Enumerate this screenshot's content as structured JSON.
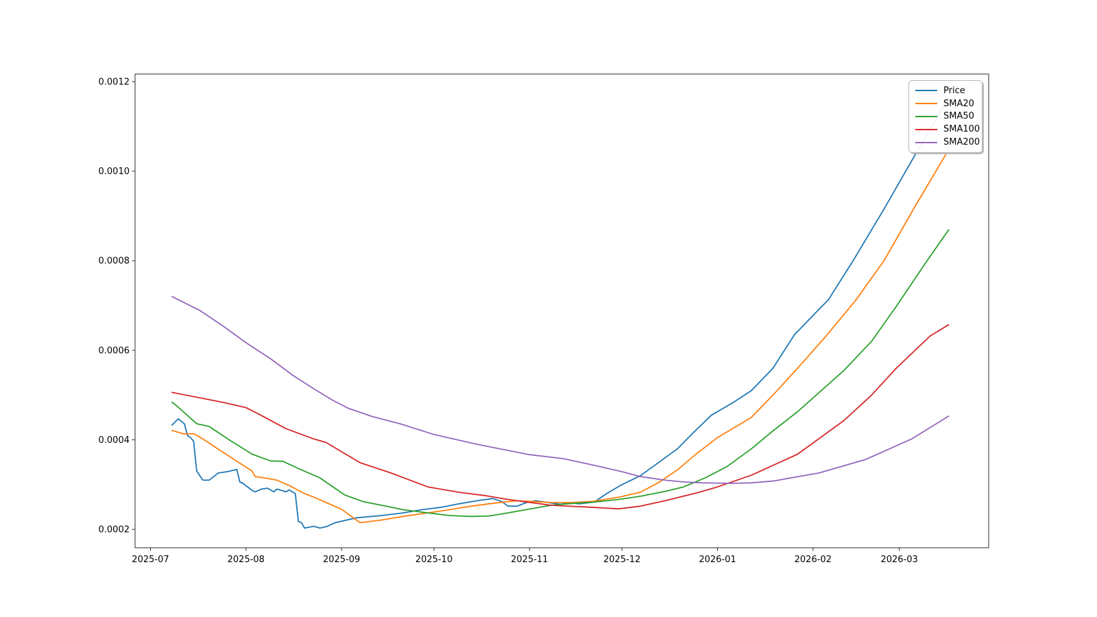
{
  "figure": {
    "background": "#ffffff",
    "plot_background": "#ffffff",
    "spine_color": "#2a2a2a"
  },
  "chart_data": {
    "type": "line",
    "title": "",
    "xlabel": "",
    "ylabel": "",
    "grid": false,
    "legend_position": "upper right",
    "x_axis": {
      "range": [
        "2025-06-26",
        "2026-03-30"
      ],
      "ticks": [
        {
          "label": "2025-07",
          "date": "2025-07-01"
        },
        {
          "label": "2025-08",
          "date": "2025-08-01"
        },
        {
          "label": "2025-09",
          "date": "2025-09-01"
        },
        {
          "label": "2025-10",
          "date": "2025-10-01"
        },
        {
          "label": "2025-11",
          "date": "2025-11-01"
        },
        {
          "label": "2025-12",
          "date": "2025-12-01"
        },
        {
          "label": "2026-01",
          "date": "2026-01-01"
        },
        {
          "label": "2026-02",
          "date": "2026-02-01"
        },
        {
          "label": "2026-03",
          "date": "2026-03-01"
        }
      ]
    },
    "y_axis": {
      "range": [
        0.000159,
        0.001217
      ],
      "ticks": [
        {
          "label": "0.0002",
          "value": 0.0002
        },
        {
          "label": "0.0004",
          "value": 0.0004
        },
        {
          "label": "0.0006",
          "value": 0.0006
        },
        {
          "label": "0.0008",
          "value": 0.0008
        },
        {
          "label": "0.0010",
          "value": 0.001
        },
        {
          "label": "0.0012",
          "value": 0.0012
        }
      ]
    },
    "series": [
      {
        "name": "Price",
        "color": "#1f77b4",
        "points": [
          [
            "2025-07-08",
            0.000433
          ],
          [
            "2025-07-10",
            0.000447
          ],
          [
            "2025-07-12",
            0.000436
          ],
          [
            "2025-07-13",
            0.00041
          ],
          [
            "2025-07-14",
            0.000405
          ],
          [
            "2025-07-15",
            0.000397
          ],
          [
            "2025-07-16",
            0.00033
          ],
          [
            "2025-07-18",
            0.00031
          ],
          [
            "2025-07-20",
            0.00031
          ],
          [
            "2025-07-23",
            0.000326
          ],
          [
            "2025-07-26",
            0.000329
          ],
          [
            "2025-07-29",
            0.000334
          ],
          [
            "2025-07-30",
            0.000306
          ],
          [
            "2025-07-31",
            0.000303
          ],
          [
            "2025-08-03",
            0.000287
          ],
          [
            "2025-08-04",
            0.000284
          ],
          [
            "2025-08-06",
            0.00029
          ],
          [
            "2025-08-08",
            0.000292
          ],
          [
            "2025-08-10",
            0.000284
          ],
          [
            "2025-08-11",
            0.00029
          ],
          [
            "2025-08-14",
            0.000284
          ],
          [
            "2025-08-15",
            0.000288
          ],
          [
            "2025-08-17",
            0.00028
          ],
          [
            "2025-08-18",
            0.000218
          ],
          [
            "2025-08-19",
            0.000215
          ],
          [
            "2025-08-20",
            0.000203
          ],
          [
            "2025-08-23",
            0.000207
          ],
          [
            "2025-08-25",
            0.000203
          ],
          [
            "2025-08-27",
            0.000206
          ],
          [
            "2025-08-30",
            0.000215
          ],
          [
            "2025-09-06",
            0.000226
          ],
          [
            "2025-09-14",
            0.000231
          ],
          [
            "2025-09-21",
            0.000237
          ],
          [
            "2025-09-27",
            0.000244
          ],
          [
            "2025-10-03",
            0.000249
          ],
          [
            "2025-10-09",
            0.000257
          ],
          [
            "2025-10-15",
            0.000264
          ],
          [
            "2025-10-20",
            0.000269
          ],
          [
            "2025-10-23",
            0.000262
          ],
          [
            "2025-10-25",
            0.000252
          ],
          [
            "2025-10-28",
            0.000252
          ],
          [
            "2025-10-31",
            0.00026
          ],
          [
            "2025-11-03",
            0.000264
          ],
          [
            "2025-11-06",
            0.000261
          ],
          [
            "2025-11-08",
            0.000259
          ],
          [
            "2025-11-11",
            0.000256
          ],
          [
            "2025-11-14",
            0.00026
          ],
          [
            "2025-11-17",
            0.000257
          ],
          [
            "2025-11-22",
            0.000261
          ],
          [
            "2025-11-26",
            0.00028
          ],
          [
            "2025-12-01",
            0.0003
          ],
          [
            "2025-12-07",
            0.00032
          ],
          [
            "2025-12-13",
            0.00035
          ],
          [
            "2025-12-19",
            0.00038
          ],
          [
            "2025-12-24",
            0.000415
          ],
          [
            "2025-12-30",
            0.000455
          ],
          [
            "2026-01-06",
            0.000483
          ],
          [
            "2026-01-12",
            0.00051
          ],
          [
            "2026-01-19",
            0.00056
          ],
          [
            "2026-01-26",
            0.000635
          ],
          [
            "2026-02-02",
            0.000685
          ],
          [
            "2026-02-06",
            0.000713
          ],
          [
            "2026-02-14",
            0.0008
          ],
          [
            "2026-02-24",
            0.000915
          ],
          [
            "2026-03-06",
            0.001035
          ],
          [
            "2026-03-17",
            0.001165
          ]
        ]
      },
      {
        "name": "SMA20",
        "color": "#ff7f0e",
        "points": [
          [
            "2025-07-08",
            0.000421
          ],
          [
            "2025-07-12",
            0.000413
          ],
          [
            "2025-07-15",
            0.000414
          ],
          [
            "2025-07-18",
            0.000402
          ],
          [
            "2025-07-23",
            0.000379
          ],
          [
            "2025-07-28",
            0.000357
          ],
          [
            "2025-08-03",
            0.00033
          ],
          [
            "2025-08-04",
            0.000318
          ],
          [
            "2025-08-07",
            0.000315
          ],
          [
            "2025-08-11",
            0.00031
          ],
          [
            "2025-08-15",
            0.000298
          ],
          [
            "2025-08-20",
            0.00028
          ],
          [
            "2025-08-23",
            0.000272
          ],
          [
            "2025-08-27",
            0.00026
          ],
          [
            "2025-09-01",
            0.000245
          ],
          [
            "2025-09-07",
            0.000215
          ],
          [
            "2025-09-14",
            0.000221
          ],
          [
            "2025-09-21",
            0.000229
          ],
          [
            "2025-09-29",
            0.000237
          ],
          [
            "2025-10-06",
            0.000244
          ],
          [
            "2025-10-13",
            0.000252
          ],
          [
            "2025-10-21",
            0.000259
          ],
          [
            "2025-10-28",
            0.000264
          ],
          [
            "2025-11-08",
            0.00026
          ],
          [
            "2025-11-15",
            0.00026
          ],
          [
            "2025-11-22",
            0.000263
          ],
          [
            "2025-11-30",
            0.000272
          ],
          [
            "2025-12-07",
            0.000283
          ],
          [
            "2025-12-13",
            0.000305
          ],
          [
            "2025-12-19",
            0.000333
          ],
          [
            "2025-12-25",
            0.000368
          ],
          [
            "2026-01-01",
            0.000405
          ],
          [
            "2026-01-12",
            0.00045
          ],
          [
            "2026-01-19",
            0.0005
          ],
          [
            "2026-01-27",
            0.00056
          ],
          [
            "2026-02-05",
            0.00063
          ],
          [
            "2026-02-15",
            0.000713
          ],
          [
            "2026-02-24",
            0.0008
          ],
          [
            "2026-03-06",
            0.00092
          ],
          [
            "2026-03-17",
            0.001048
          ]
        ]
      },
      {
        "name": "SMA50",
        "color": "#2ca02c",
        "points": [
          [
            "2025-07-08",
            0.000484
          ],
          [
            "2025-07-09",
            0.000479
          ],
          [
            "2025-07-16",
            0.000436
          ],
          [
            "2025-07-20",
            0.00043
          ],
          [
            "2025-07-27",
            0.000398
          ],
          [
            "2025-08-03",
            0.000368
          ],
          [
            "2025-08-09",
            0.000353
          ],
          [
            "2025-08-13",
            0.000352
          ],
          [
            "2025-08-18",
            0.000336
          ],
          [
            "2025-08-25",
            0.000315
          ],
          [
            "2025-09-02",
            0.000277
          ],
          [
            "2025-09-08",
            0.000262
          ],
          [
            "2025-09-14",
            0.000254
          ],
          [
            "2025-09-21",
            0.000244
          ],
          [
            "2025-09-29",
            0.000237
          ],
          [
            "2025-10-06",
            0.000231
          ],
          [
            "2025-10-13",
            0.000229
          ],
          [
            "2025-10-19",
            0.00023
          ],
          [
            "2025-10-25",
            0.000237
          ],
          [
            "2025-11-08",
            0.000254
          ],
          [
            "2025-11-15",
            0.000258
          ],
          [
            "2025-11-22",
            0.000261
          ],
          [
            "2025-11-30",
            0.000267
          ],
          [
            "2025-12-07",
            0.000274
          ],
          [
            "2025-12-15",
            0.000285
          ],
          [
            "2025-12-21",
            0.000295
          ],
          [
            "2025-12-28",
            0.000315
          ],
          [
            "2026-01-04",
            0.00034
          ],
          [
            "2026-01-12",
            0.00038
          ],
          [
            "2026-01-19",
            0.00042
          ],
          [
            "2026-01-27",
            0.000463
          ],
          [
            "2026-02-11",
            0.000555
          ],
          [
            "2026-02-20",
            0.00062
          ],
          [
            "2026-02-28",
            0.000698
          ],
          [
            "2026-03-10",
            0.0008
          ],
          [
            "2026-03-17",
            0.000869
          ]
        ]
      },
      {
        "name": "SMA100",
        "color": "#d62728",
        "points": [
          [
            "2025-07-08",
            0.000506
          ],
          [
            "2025-07-17",
            0.000494
          ],
          [
            "2025-07-25",
            0.000483
          ],
          [
            "2025-08-01",
            0.000472
          ],
          [
            "2025-08-05",
            0.000458
          ],
          [
            "2025-08-14",
            0.000425
          ],
          [
            "2025-08-23",
            0.000402
          ],
          [
            "2025-08-27",
            0.000394
          ],
          [
            "2025-09-07",
            0.000349
          ],
          [
            "2025-09-17",
            0.000326
          ],
          [
            "2025-09-29",
            0.000295
          ],
          [
            "2025-10-09",
            0.000283
          ],
          [
            "2025-10-18",
            0.000275
          ],
          [
            "2025-10-25",
            0.000267
          ],
          [
            "2025-10-28",
            0.000264
          ],
          [
            "2025-11-08",
            0.000254
          ],
          [
            "2025-11-22",
            0.000249
          ],
          [
            "2025-11-30",
            0.000246
          ],
          [
            "2025-12-07",
            0.000252
          ],
          [
            "2025-12-15",
            0.000264
          ],
          [
            "2025-12-25",
            0.000281
          ],
          [
            "2026-01-01",
            0.000295
          ],
          [
            "2026-01-12",
            0.000321
          ],
          [
            "2026-01-27",
            0.000368
          ],
          [
            "2026-02-11",
            0.000443
          ],
          [
            "2026-02-20",
            0.0005
          ],
          [
            "2026-02-28",
            0.00056
          ],
          [
            "2026-03-11",
            0.000632
          ],
          [
            "2026-03-17",
            0.000657
          ]
        ]
      },
      {
        "name": "SMA200",
        "color": "#9467bd",
        "points": [
          [
            "2025-07-08",
            0.00072
          ],
          [
            "2025-07-17",
            0.000689
          ],
          [
            "2025-07-25",
            0.000652
          ],
          [
            "2025-08-01",
            0.000617
          ],
          [
            "2025-08-09",
            0.000581
          ],
          [
            "2025-08-16",
            0.000545
          ],
          [
            "2025-08-23",
            0.000514
          ],
          [
            "2025-08-29",
            0.000489
          ],
          [
            "2025-09-03",
            0.000471
          ],
          [
            "2025-09-11",
            0.000452
          ],
          [
            "2025-09-20",
            0.000436
          ],
          [
            "2025-10-01",
            0.000412
          ],
          [
            "2025-10-15",
            0.00039
          ],
          [
            "2025-11-01",
            0.000367
          ],
          [
            "2025-11-12",
            0.000358
          ],
          [
            "2025-11-22",
            0.000343
          ],
          [
            "2025-12-01",
            0.000329
          ],
          [
            "2025-12-07",
            0.000318
          ],
          [
            "2025-12-15",
            0.00031
          ],
          [
            "2025-12-21",
            0.000306
          ],
          [
            "2025-12-27",
            0.000304
          ],
          [
            "2026-01-05",
            0.000303
          ],
          [
            "2026-01-12",
            0.000304
          ],
          [
            "2026-01-19",
            0.000308
          ],
          [
            "2026-02-03",
            0.000326
          ],
          [
            "2026-02-18",
            0.000356
          ],
          [
            "2026-03-05",
            0.000402
          ],
          [
            "2026-03-17",
            0.000453
          ]
        ]
      }
    ]
  }
}
